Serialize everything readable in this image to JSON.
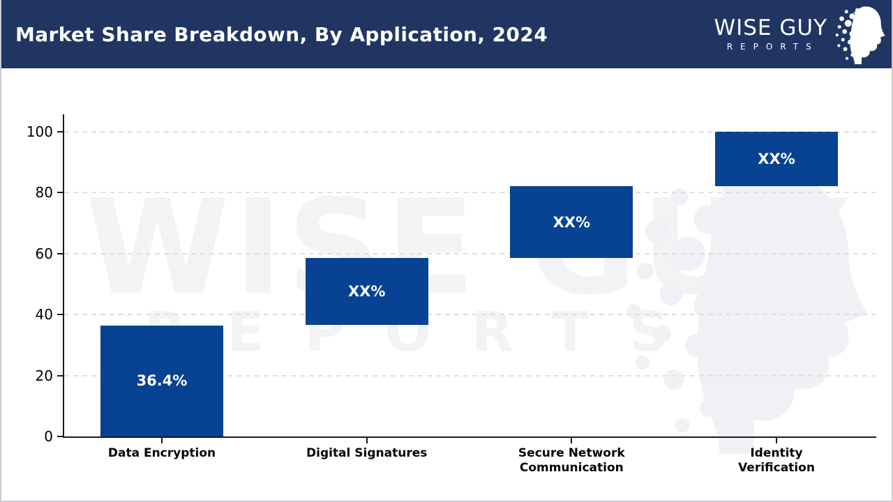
{
  "header": {
    "title": "Market Share Breakdown, By Application, 2024",
    "brand": {
      "line1": "WISE GUY",
      "line2": "REPORTS"
    }
  },
  "watermark": {
    "line1": "WISE GUY",
    "line2": "REPORTS"
  },
  "chart_data": {
    "type": "bar",
    "variant": "floating-segment-waterfall",
    "title": "Market Share Breakdown, By Application, 2024",
    "categories": [
      "Data Encryption",
      "Digital Signatures",
      "Secure Network\nCommunication",
      "Identity\nVerification"
    ],
    "segments": [
      {
        "category": "Data Encryption",
        "start": 0,
        "end": 36.4,
        "label": "36.4%"
      },
      {
        "category": "Digital Signatures",
        "start": 36.6,
        "end": 58.5,
        "label": "XX%"
      },
      {
        "category": "Secure Network Communication",
        "start": 58.5,
        "end": 82.0,
        "label": "XX%"
      },
      {
        "category": "Identity Verification",
        "start": 82.0,
        "end": 100.0,
        "label": "XX%"
      }
    ],
    "xlabel": "",
    "ylabel": "",
    "yticks": [
      0,
      20,
      40,
      60,
      80,
      100
    ],
    "ylim": [
      0,
      105.5
    ],
    "grid": "horizontal-dashed",
    "legend": "none",
    "bar_color": "#074293",
    "bar_label_color": "#ffffff",
    "header_color": "#213563",
    "gridline_color": "#dedfe1",
    "watermark_color": "#f2f3f5"
  }
}
